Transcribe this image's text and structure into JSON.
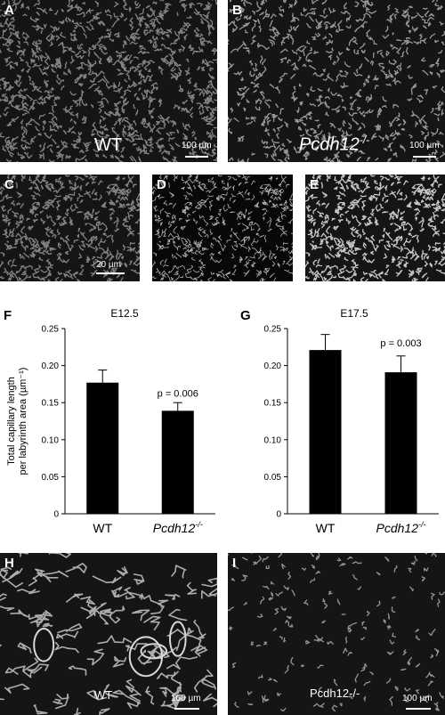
{
  "panels": {
    "A": {
      "letter": "A",
      "label": "WT",
      "scale": "100 µm"
    },
    "B": {
      "letter": "B",
      "label": "Pcdh12",
      "label_sup": "-/-",
      "scale": "100 µm"
    },
    "C": {
      "letter": "C",
      "scale": "20 µm"
    },
    "D": {
      "letter": "D"
    },
    "E": {
      "letter": "E"
    },
    "H": {
      "letter": "H",
      "label": "WT",
      "scale": "100 µm"
    },
    "I": {
      "letter": "I",
      "label": "Pcdh12-/-",
      "scale": "100 µm"
    }
  },
  "chart_data": [
    {
      "panel": "F",
      "type": "bar",
      "title": "E12.5",
      "ylabel": "Total capillary length per labyrinth area (µm⁻¹)",
      "ylabel_line1": "Total capillary length",
      "ylabel_line2": "per labyrinth area (µm⁻¹)",
      "categories": [
        "WT",
        "Pcdh12"
      ],
      "category_sup": [
        "",
        "-/-"
      ],
      "values": [
        0.177,
        0.139
      ],
      "errors": [
        0.017,
        0.011
      ],
      "annotation": "p = 0.006",
      "ylim": [
        0,
        0.25
      ],
      "yticks": [
        "0",
        "0.05",
        "0.10",
        "0.15",
        "0.20",
        "0.25"
      ]
    },
    {
      "panel": "G",
      "type": "bar",
      "title": "E17.5",
      "categories": [
        "WT",
        "Pcdh12"
      ],
      "category_sup": [
        "",
        "-/-"
      ],
      "values": [
        0.221,
        0.191
      ],
      "errors": [
        0.021,
        0.022
      ],
      "annotation": "p = 0.003",
      "ylim": [
        0,
        0.25
      ],
      "yticks": [
        "0",
        "0.05",
        "0.10",
        "0.15",
        "0.20",
        "0.25"
      ]
    }
  ]
}
